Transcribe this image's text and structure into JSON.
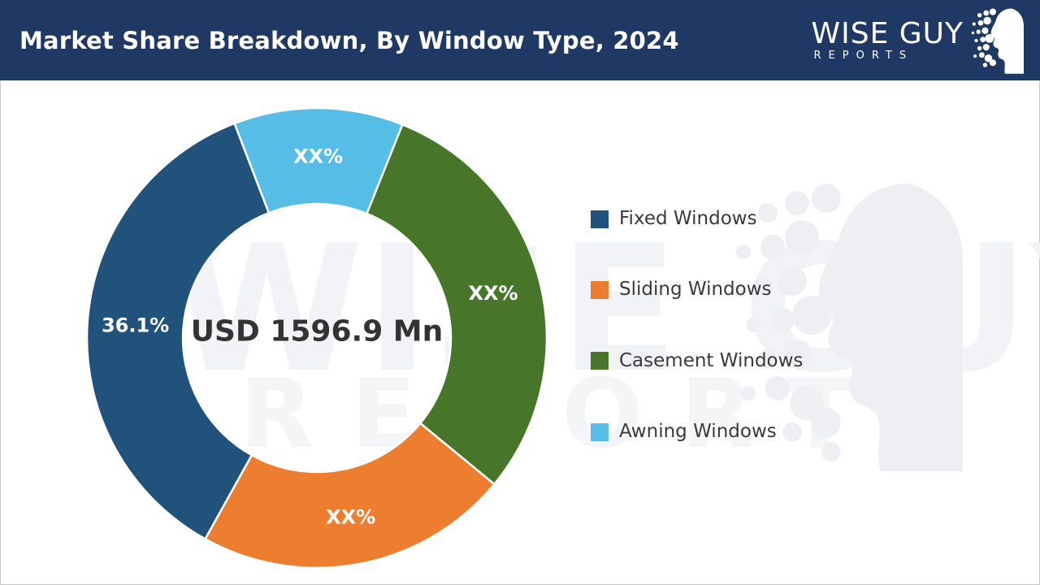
{
  "header": {
    "title": "Market Share Breakdown, By Window Type, 2024",
    "bg_color": "#203864",
    "logo": {
      "wordmark": "WISE GUY",
      "reports": "REPORTS"
    }
  },
  "watermark": {
    "line1": "WISE GUY",
    "line2": "REPORTS"
  },
  "chart_data": {
    "type": "pie",
    "subtype": "donut",
    "title": "Market Share Breakdown, By Window Type, 2024",
    "center_label": "USD 1596.9 Mn",
    "start_angle_deg": 111,
    "direction": "counterclockwise",
    "donut_inner_ratio": 0.583,
    "legend_position": "right",
    "series": [
      {
        "name": "Fixed Windows",
        "value_pct": 36.1,
        "display_label": "36.1%",
        "color": "#20527b"
      },
      {
        "name": "Sliding Windows",
        "value_pct": 22.1,
        "display_label": "XX%",
        "color": "#ed7e30"
      },
      {
        "name": "Casement Windows",
        "value_pct": 29.9,
        "display_label": "XX%",
        "color": "#47762a"
      },
      {
        "name": "Awning Windows",
        "value_pct": 11.9,
        "display_label": "XX%",
        "color": "#55bde6"
      }
    ]
  }
}
